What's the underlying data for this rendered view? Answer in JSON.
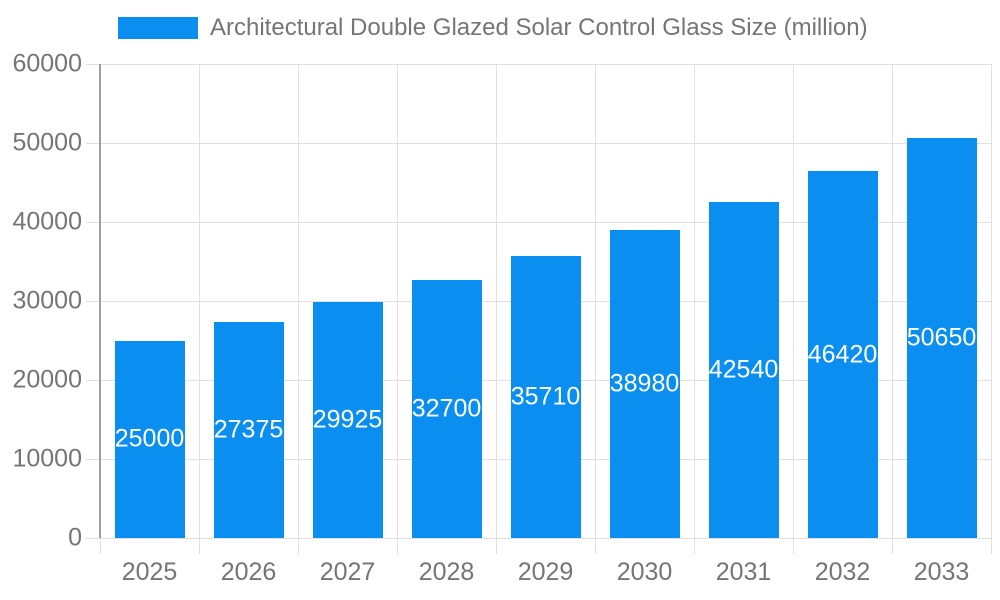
{
  "legend": {
    "label": "Architectural Double Glazed Solar Control Glass Size (million)"
  },
  "chart_data": {
    "type": "bar",
    "title": "Architectural Double Glazed Solar Control Glass Size (million)",
    "categories": [
      "2025",
      "2026",
      "2027",
      "2028",
      "2029",
      "2030",
      "2031",
      "2032",
      "2033"
    ],
    "series": [
      {
        "name": "Architectural Double Glazed Solar Control Glass Size (million)",
        "values": [
          25000,
          27375,
          29925,
          32700,
          35710,
          38980,
          42540,
          46420,
          50650
        ]
      }
    ],
    "value_labels": [
      "25000",
      "27375",
      "29925",
      "32700",
      "35710",
      "38980",
      "42540",
      "46420",
      "50650"
    ],
    "xlabel": "",
    "ylabel": "",
    "ylim": [
      0,
      60000
    ],
    "ytick_step": 10000,
    "yticks": [
      "0",
      "10000",
      "20000",
      "30000",
      "40000",
      "50000",
      "60000"
    ],
    "grid": true,
    "legend_position": "top-left",
    "value_label_position": "inside-center",
    "colors": {
      "bar": "#0a8ff0",
      "grid": "#e0e0e0",
      "axis_line": "#9e9e9e",
      "tick_text": "#757575",
      "legend_text": "#757575",
      "value_label_text": "#ffffff",
      "background": "#ffffff"
    }
  }
}
